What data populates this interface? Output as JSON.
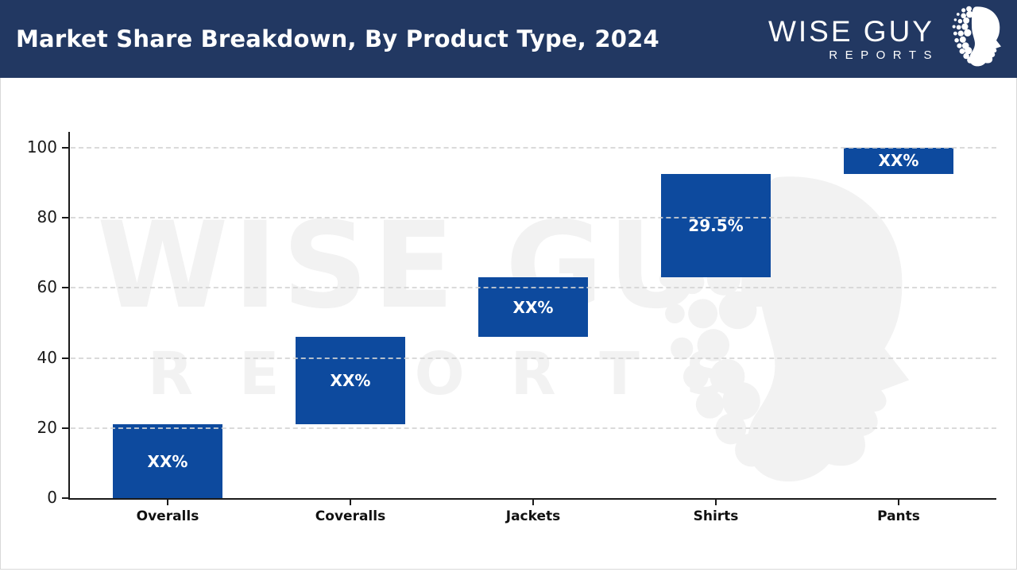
{
  "header": {
    "title": "Market Share Breakdown, By Product Type, 2024",
    "bg_color": "#223862",
    "logo": {
      "line1": "WISE GUY",
      "line2": "REPORTS"
    }
  },
  "watermark": {
    "line1": "WISE GUY",
    "line2": "REPORTS"
  },
  "chart_data": {
    "type": "bar",
    "variant": "waterfall",
    "title": "Market Share Breakdown, By Product Type, 2024",
    "categories": [
      "Overalls",
      "Coveralls",
      "Jackets",
      "Shirts",
      "Pants"
    ],
    "series": [
      {
        "name": "Market Share (%)",
        "values": [
          21,
          25,
          17,
          29.5,
          7.5
        ],
        "starts": [
          0,
          21,
          46,
          63,
          92.5
        ],
        "ends": [
          21,
          46,
          63,
          92.5,
          100
        ]
      }
    ],
    "bar_labels": [
      "XX%",
      "XX%",
      "XX%",
      "29.5%",
      "XX%"
    ],
    "xlabel": "",
    "ylabel": "",
    "yticks": [
      0,
      20,
      40,
      60,
      80,
      100
    ],
    "ylim": [
      0,
      104.5
    ],
    "grid": true,
    "grid_style": "dashed",
    "legend_position": "none",
    "bar_color": "#0D4A9E",
    "label_color": "#ffffff"
  }
}
